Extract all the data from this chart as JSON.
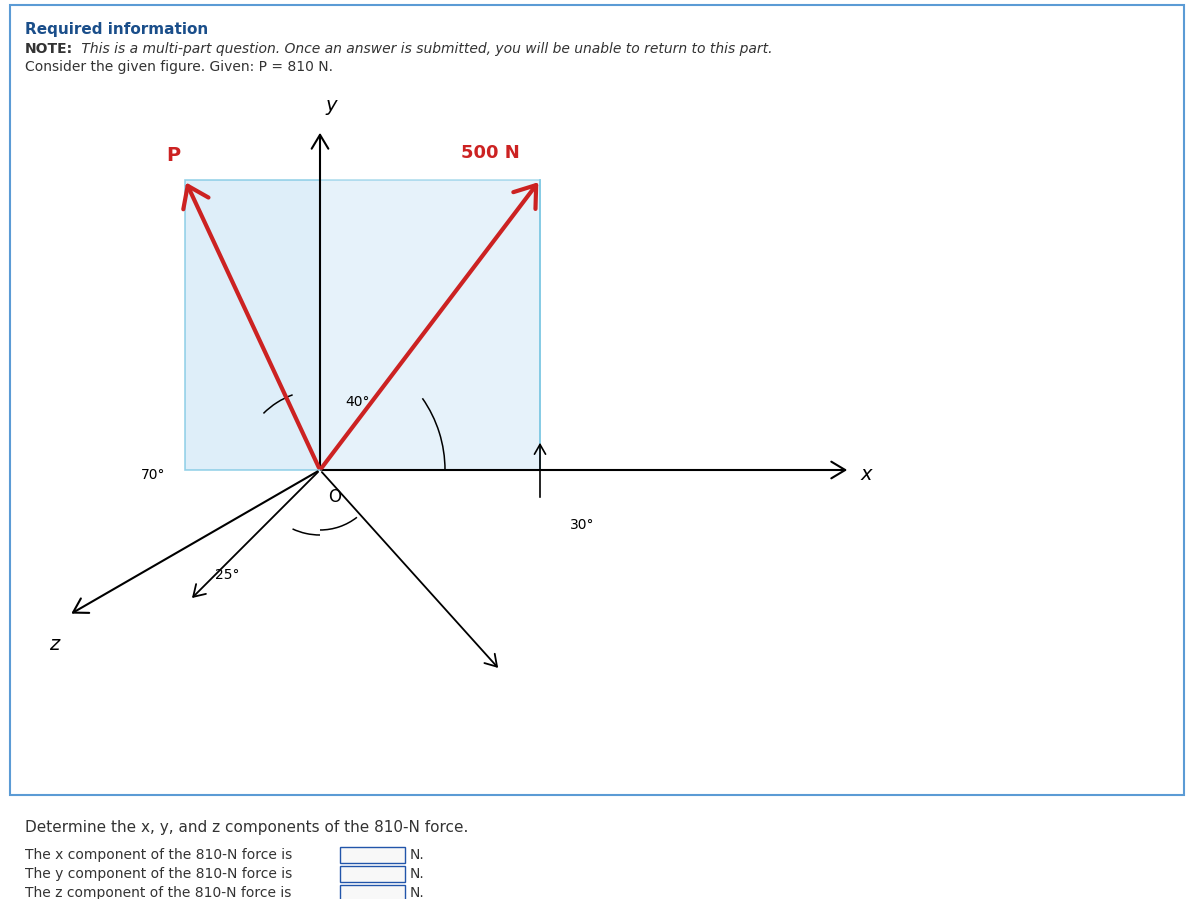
{
  "title": "Required information",
  "note_line1": "NOTE: This is a multi-part question. Once an answer is submitted, you will be unable to return to this part.",
  "note_line2": "Consider the given figure. Given: P = 810 N.",
  "bg_color": "#ffffff",
  "border_color": "#5b9bd5",
  "panel_color": "#d6eaf8",
  "panel_edge": "#7ec8e3",
  "arrow_color": "#cc2222",
  "axis_color": "#000000",
  "label_500N": "500 N",
  "label_P": "P",
  "label_x": "x",
  "label_y": "y",
  "label_z": "z",
  "label_O": "O",
  "angle_40": "40°",
  "angle_70": "70°",
  "angle_30": "30°",
  "angle_25": "25°",
  "bottom_text_1": "Determine the x, y, and z components of the 810-N force.",
  "bottom_text_2": "The x component of the 810-N force is",
  "bottom_text_3": "The y component of the 810-N force is",
  "bottom_text_4": "The z component of the 810-N force is",
  "unit_N": "N.",
  "title_color": "#1a4e8a",
  "text_color": "#333333"
}
